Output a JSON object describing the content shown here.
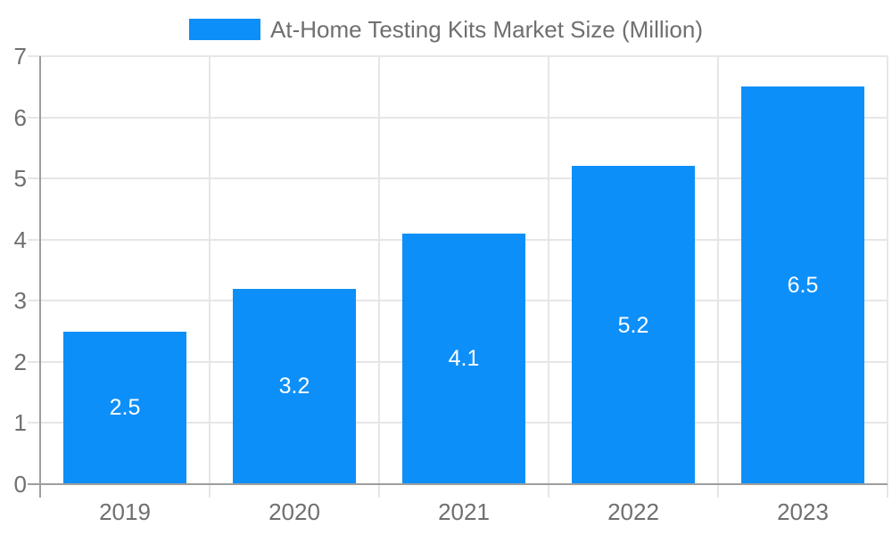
{
  "chart_data": {
    "type": "bar",
    "title": "At-Home Testing Kits Market Size (Million)",
    "categories": [
      "2019",
      "2020",
      "2021",
      "2022",
      "2023"
    ],
    "values": [
      2.5,
      3.2,
      4.1,
      5.2,
      6.5
    ],
    "series": [
      {
        "name": "At-Home Testing Kits Market Size (Million)",
        "values": [
          2.5,
          3.2,
          4.1,
          5.2,
          6.5
        ]
      }
    ],
    "value_labels": [
      "2.5",
      "3.2",
      "4.1",
      "5.2",
      "6.5"
    ],
    "xlabel": "",
    "ylabel": "",
    "ylim": [
      0,
      7
    ],
    "yticks": [
      0,
      1,
      2,
      3,
      4,
      5,
      6,
      7
    ],
    "grid": true,
    "legend_position": "top-center",
    "colors": {
      "bar": "#0d8ff9",
      "grid": "#e6e6e6",
      "axis": "#9e9e9e",
      "text": "#6f6f6f",
      "value_label": "#ffffff",
      "background": "#ffffff"
    }
  }
}
